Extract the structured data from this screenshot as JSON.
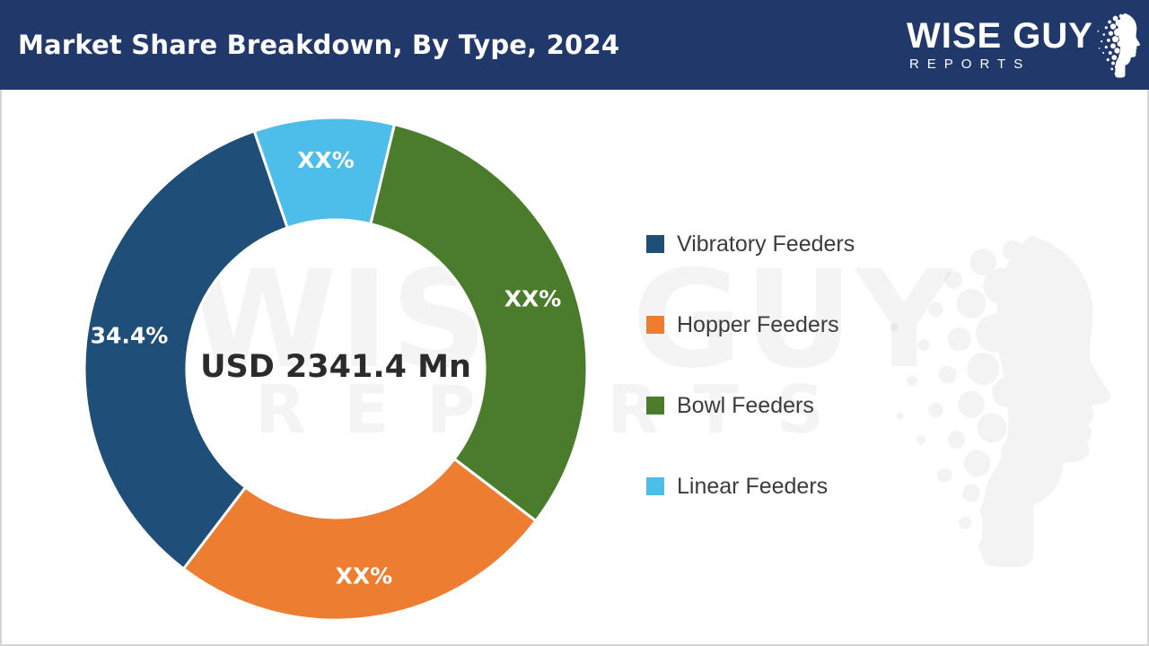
{
  "header": {
    "title": "Market Share Breakdown, By Type, 2024",
    "logo": {
      "name": "WISE GUY",
      "subtitle": "REPORTS"
    }
  },
  "watermark": {
    "name": "WISE GUY",
    "subtitle": "REPORTS"
  },
  "chart_data": {
    "type": "donut",
    "title": "Market Share Breakdown, By Type, 2024",
    "center_label": "USD 2341.4 Mn",
    "start_angle_deg": 76.5,
    "rotation": "clockwise",
    "slices": [
      {
        "label": "Bowl Feeders",
        "value_pct": 31.6,
        "display_label": "XX%",
        "color": "#4A7C2B"
      },
      {
        "label": "Hopper Feeders",
        "value_pct": 25.0,
        "display_label": "XX%",
        "color": "#ED7D31"
      },
      {
        "label": "Vibratory Feeders",
        "value_pct": 34.4,
        "display_label": "34.4%",
        "color": "#1F4E79"
      },
      {
        "label": "Linear Feeders",
        "value_pct": 9.0,
        "display_label": "XX%",
        "color": "#4DBEE9"
      }
    ],
    "legend": {
      "position": "right",
      "items": [
        {
          "label": "Vibratory Feeders",
          "color": "#1F4E79"
        },
        {
          "label": "Hopper Feeders",
          "color": "#ED7D31"
        },
        {
          "label": "Bowl Feeders",
          "color": "#4A7C2B"
        },
        {
          "label": "Linear Feeders",
          "color": "#4DBEE9"
        }
      ]
    }
  },
  "colors": {
    "header_bg": "#21386B",
    "content_border": "#D5D5D5",
    "slice_gap": "#FFFFFF",
    "center_text": "#2B2B2B",
    "legend_text": "#3C3C3C"
  }
}
